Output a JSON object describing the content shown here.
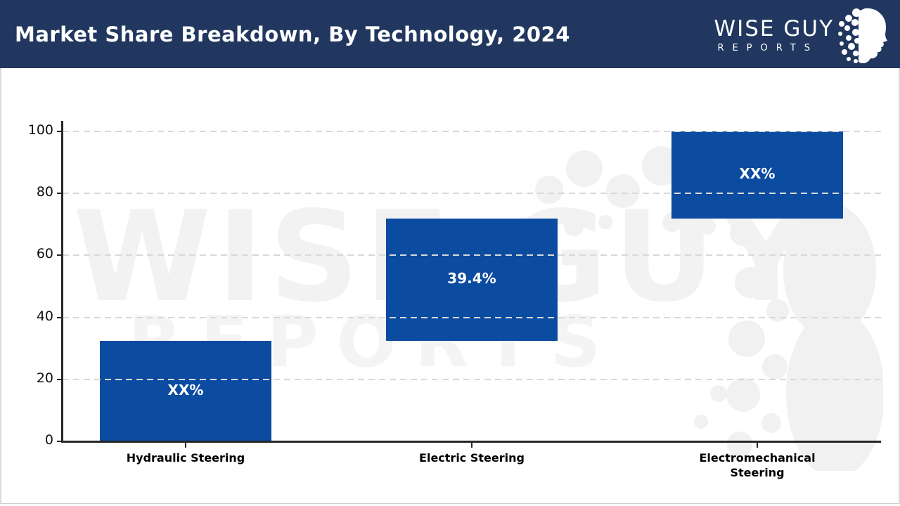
{
  "header": {
    "title": "Market Share Breakdown, By Technology, 2024",
    "logo": {
      "wordmark": "WISE GUY",
      "subtitle": "REPORTS"
    }
  },
  "watermark": {
    "wordmark": "WISE GUY",
    "subtitle": "REPORTS"
  },
  "chart_data": {
    "type": "bar",
    "subtype": "waterfall",
    "title": "Market Share Breakdown, By Technology, 2024",
    "categories": [
      "Hydraulic Steering",
      "Electric Steering",
      "Electromechanical Steering"
    ],
    "unit": "%",
    "segments": [
      {
        "category": "Hydraulic Steering",
        "start": 0,
        "end": 32.4,
        "value_label": "XX%"
      },
      {
        "category": "Electric Steering",
        "start": 32.4,
        "end": 71.8,
        "value_label": "39.4%",
        "value": 39.4
      },
      {
        "category": "Electromechanical Steering",
        "start": 71.8,
        "end": 100,
        "value_label": "XX%"
      }
    ],
    "xlabel": "",
    "ylabel": "",
    "ylim": [
      0,
      103.5
    ],
    "yticks": [
      0,
      20,
      40,
      60,
      80,
      100
    ],
    "grid": "horizontal-dashed-over-bars",
    "legend": "none",
    "colors": {
      "bar": "#0b4ba0",
      "bar_label": "#ffffff",
      "grid": "#d9d9d9",
      "axis": "#262626",
      "tick_label": "#111111",
      "category_label": "#000000",
      "header_bg": "#21375f",
      "watermark": "#f2f2f2"
    }
  }
}
